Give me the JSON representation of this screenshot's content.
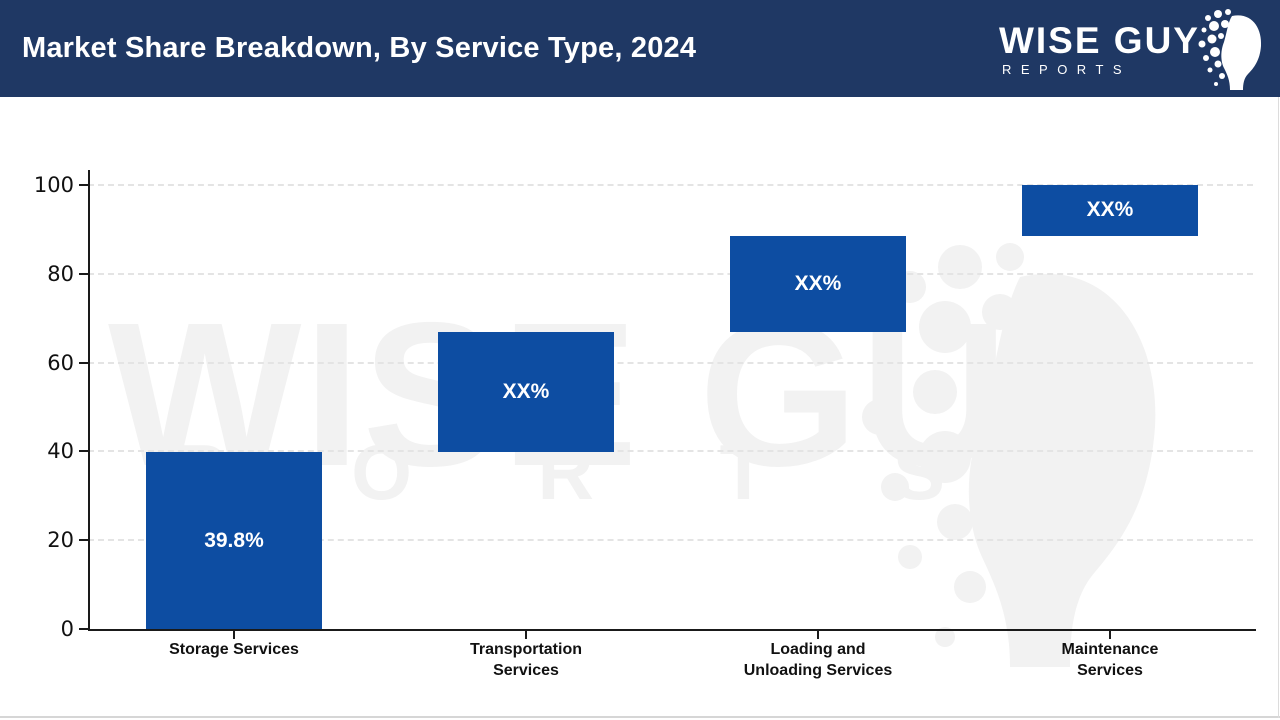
{
  "header": {
    "title": "Market Share Breakdown, By Service Type, 2024",
    "background_color": "#1f3864",
    "logo": {
      "line1": "WISE GUY",
      "line2": "REPORTS",
      "face_icon": "wiseguy-dotted-face"
    }
  },
  "watermark": {
    "line1": "WISE GU",
    "line2": "P O R T S",
    "face_icon": "wiseguy-dotted-face",
    "color": "#f2f2f2"
  },
  "chart_data": {
    "type": "bar",
    "subtype": "waterfall",
    "title": "Market Share Breakdown, By Service Type, 2024",
    "categories": [
      "Storage Services",
      "Transportation\nServices",
      "Loading and\nUnloading Services",
      "Maintenance\nServices"
    ],
    "bars": [
      {
        "category": "Storage Services",
        "start": 0,
        "end": 39.8,
        "label": "39.8%"
      },
      {
        "category": "Transportation Services",
        "start": 39.8,
        "end": 66.9,
        "label": "XX%"
      },
      {
        "category": "Loading and Unloading Services",
        "start": 66.9,
        "end": 88.6,
        "label": "XX%"
      },
      {
        "category": "Maintenance Services",
        "start": 88.6,
        "end": 100,
        "label": "XX%"
      }
    ],
    "ylim": [
      0,
      100
    ],
    "yticks": [
      0,
      20,
      40,
      60,
      80,
      100
    ],
    "grid": "horizontal-dashed",
    "legend": "none",
    "bar_color": "#0d4da2",
    "bar_label_color": "#ffffff",
    "axis_color": "#1a1a1a"
  }
}
